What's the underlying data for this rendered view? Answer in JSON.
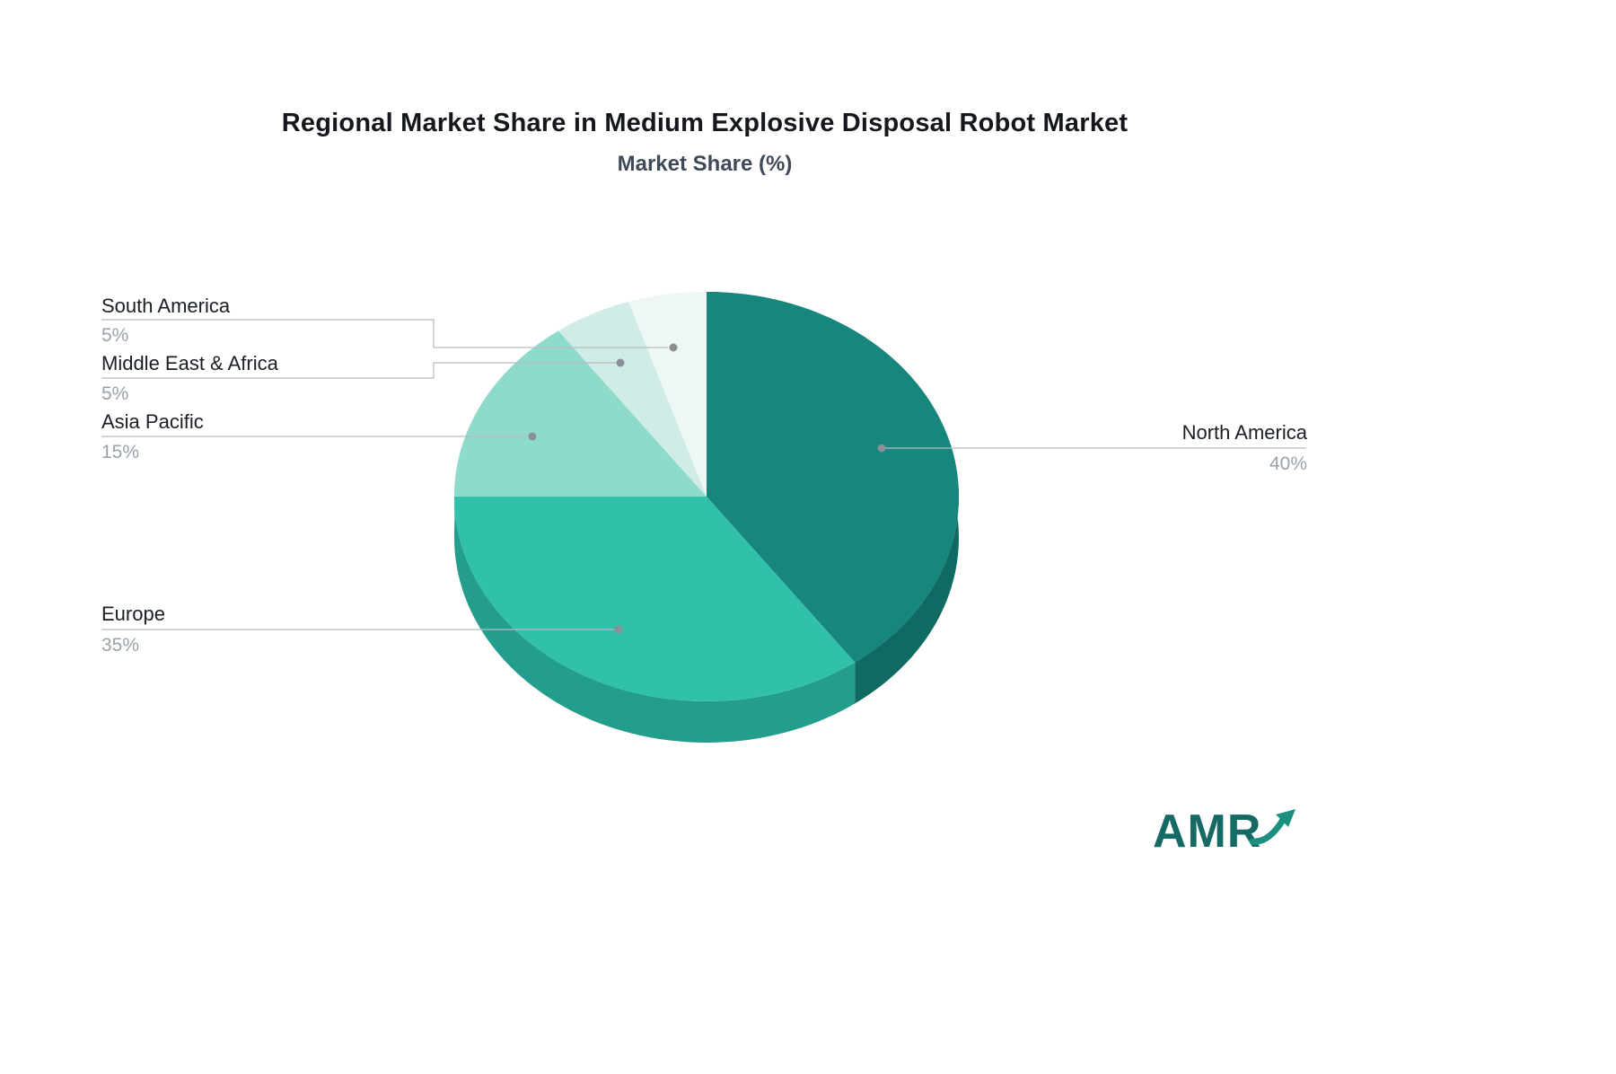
{
  "title": "Regional Market Share in Medium Explosive Disposal Robot Market",
  "subtitle": "Market Share (%)",
  "logo_text": "AMR",
  "chart_data": {
    "type": "pie",
    "title": "Regional Market Share in Medium Explosive Disposal Robot Market",
    "subtitle": "Market Share (%)",
    "unit": "%",
    "direction": "clockwise",
    "start_angle_deg": 0,
    "legend_position": "none",
    "labels_style": "leader-lines",
    "effect_3d": true,
    "slices": [
      {
        "label": "North America",
        "value": 40,
        "display": "40%",
        "color": "#17867C",
        "side_color": "#0F6B62"
      },
      {
        "label": "Europe",
        "value": 35,
        "display": "35%",
        "color": "#31C1AB",
        "side_color": "#249E8C"
      },
      {
        "label": "Asia Pacific",
        "value": 15,
        "display": "15%",
        "color": "#8EDACB",
        "side_color": "#6FC2B1"
      },
      {
        "label": "Middle East & Africa",
        "value": 5,
        "display": "5%",
        "color": "#CFEDE6",
        "side_color": "#ABD8CE"
      },
      {
        "label": "South America",
        "value": 5,
        "display": "5%",
        "color": "#EFF7F5",
        "side_color": "#CFE5E0"
      }
    ]
  },
  "colors": {
    "background": "#ffffff",
    "label_text": "#1a1e25",
    "value_text": "#9aa2ac",
    "leader_line": "#b8bcc1",
    "leader_dot": "#8b9097",
    "logo": "#156a63",
    "logo_arrow": "#1d8f80"
  }
}
